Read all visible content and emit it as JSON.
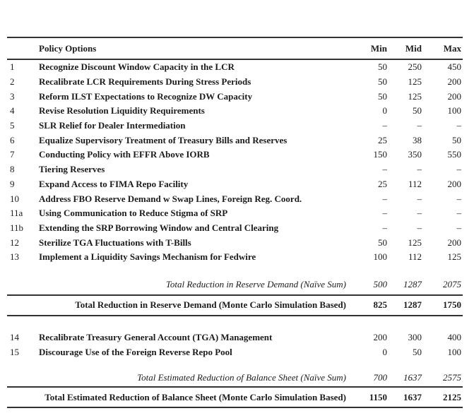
{
  "table": {
    "header": {
      "policy": "Policy Options",
      "min": "Min",
      "mid": "Mid",
      "max": "Max"
    },
    "rows": [
      {
        "num": "1",
        "policy": "Recognize Discount Window Capacity in the LCR",
        "min": "50",
        "mid": "250",
        "max": "450"
      },
      {
        "num": "2",
        "policy": "Recalibrate LCR Requirements During Stress Periods",
        "min": "50",
        "mid": "125",
        "max": "200"
      },
      {
        "num": "3",
        "policy": "Reform ILST Expectations to Recognize DW Capacity",
        "min": "50",
        "mid": "125",
        "max": "200"
      },
      {
        "num": "4",
        "policy": "Revise Resolution Liquidity Requirements",
        "min": "0",
        "mid": "50",
        "max": "100"
      },
      {
        "num": "5",
        "policy": "SLR Relief for Dealer Intermediation",
        "min": "–",
        "mid": "–",
        "max": "–"
      },
      {
        "num": "6",
        "policy": "Equalize Supervisory Treatment of Treasury Bills and Reserves",
        "min": "25",
        "mid": "38",
        "max": "50"
      },
      {
        "num": "7",
        "policy": "Conducting Policy with EFFR Above IORB",
        "min": "150",
        "mid": "350",
        "max": "550"
      },
      {
        "num": "8",
        "policy": "Tiering Reserves",
        "min": "–",
        "mid": "–",
        "max": "–"
      },
      {
        "num": "9",
        "policy": "Expand Access to FIMA Repo Facility",
        "min": "25",
        "mid": "112",
        "max": "200"
      },
      {
        "num": "10",
        "policy": "Address FBO Reserve Demand w Swap Lines, Foreign Reg. Coord.",
        "min": "–",
        "mid": "–",
        "max": "–"
      },
      {
        "num": "11a",
        "policy": "Using Communication to Reduce Stigma of SRP",
        "min": "–",
        "mid": "–",
        "max": "–"
      },
      {
        "num": "11b",
        "policy": "Extending the SRP Borrowing Window and Central Clearing",
        "min": "–",
        "mid": "–",
        "max": "–"
      },
      {
        "num": "12",
        "policy": "Sterilize TGA Fluctuations with T-Bills",
        "min": "50",
        "mid": "125",
        "max": "200"
      },
      {
        "num": "13",
        "policy": "Implement a Liquidity Savings Mechanism for Fedwire",
        "min": "100",
        "mid": "112",
        "max": "125"
      }
    ],
    "reserve_naive": {
      "label": "Total Reduction in Reserve Demand (Naïve Sum)",
      "min": "500",
      "mid": "1287",
      "max": "2075"
    },
    "reserve_mc": {
      "label": "Total Reduction in Reserve Demand (Monte Carlo Simulation Based)",
      "min": "825",
      "mid": "1287",
      "max": "1750"
    },
    "rows2": [
      {
        "num": "14",
        "policy": "Recalibrate Treasury General Account (TGA) Management",
        "min": "200",
        "mid": "300",
        "max": "400"
      },
      {
        "num": "15",
        "policy": "Discourage Use of the Foreign Reverse Repo Pool",
        "min": "0",
        "mid": "50",
        "max": "100"
      }
    ],
    "balance_naive": {
      "label": "Total Estimated Reduction of Balance Sheet (Naïve Sum)",
      "min": "700",
      "mid": "1637",
      "max": "2575"
    },
    "balance_mc": {
      "label": "Total Estimated Reduction of Balance Sheet (Monte Carlo Simulation Based)",
      "min": "1150",
      "mid": "1637",
      "max": "2125"
    }
  }
}
